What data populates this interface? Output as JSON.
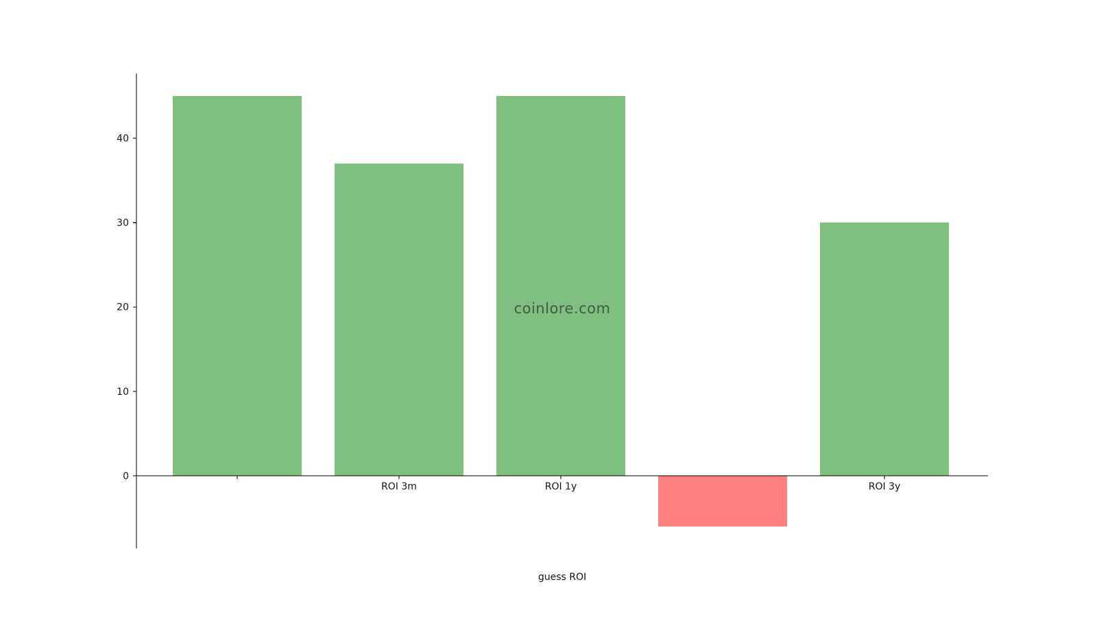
{
  "watermark": {
    "text": "coinlore.com",
    "color": "#000000",
    "opacity": 0.5
  },
  "chart_data": {
    "type": "bar",
    "title": "",
    "xlabel": "guess ROI",
    "ylabel": "",
    "categories": [
      "",
      "ROI 3m",
      "ROI 1y",
      "",
      "ROI 3y"
    ],
    "values": [
      45,
      37,
      45,
      -6,
      30
    ],
    "colors": [
      "#7fbf7f",
      "#7fbf7f",
      "#7fbf7f",
      "#ff7f7f",
      "#7fbf7f"
    ],
    "positive_color": "#7fbf7f",
    "negative_color": "#ff7f7f",
    "y_ticks": [
      0,
      10,
      20,
      30,
      40
    ],
    "ylim": [
      -8.6,
      47.7
    ],
    "grid": false,
    "legend": null,
    "axis_color": "#000000",
    "tick_label_color": "#151515",
    "baseline_at_zero": true
  }
}
